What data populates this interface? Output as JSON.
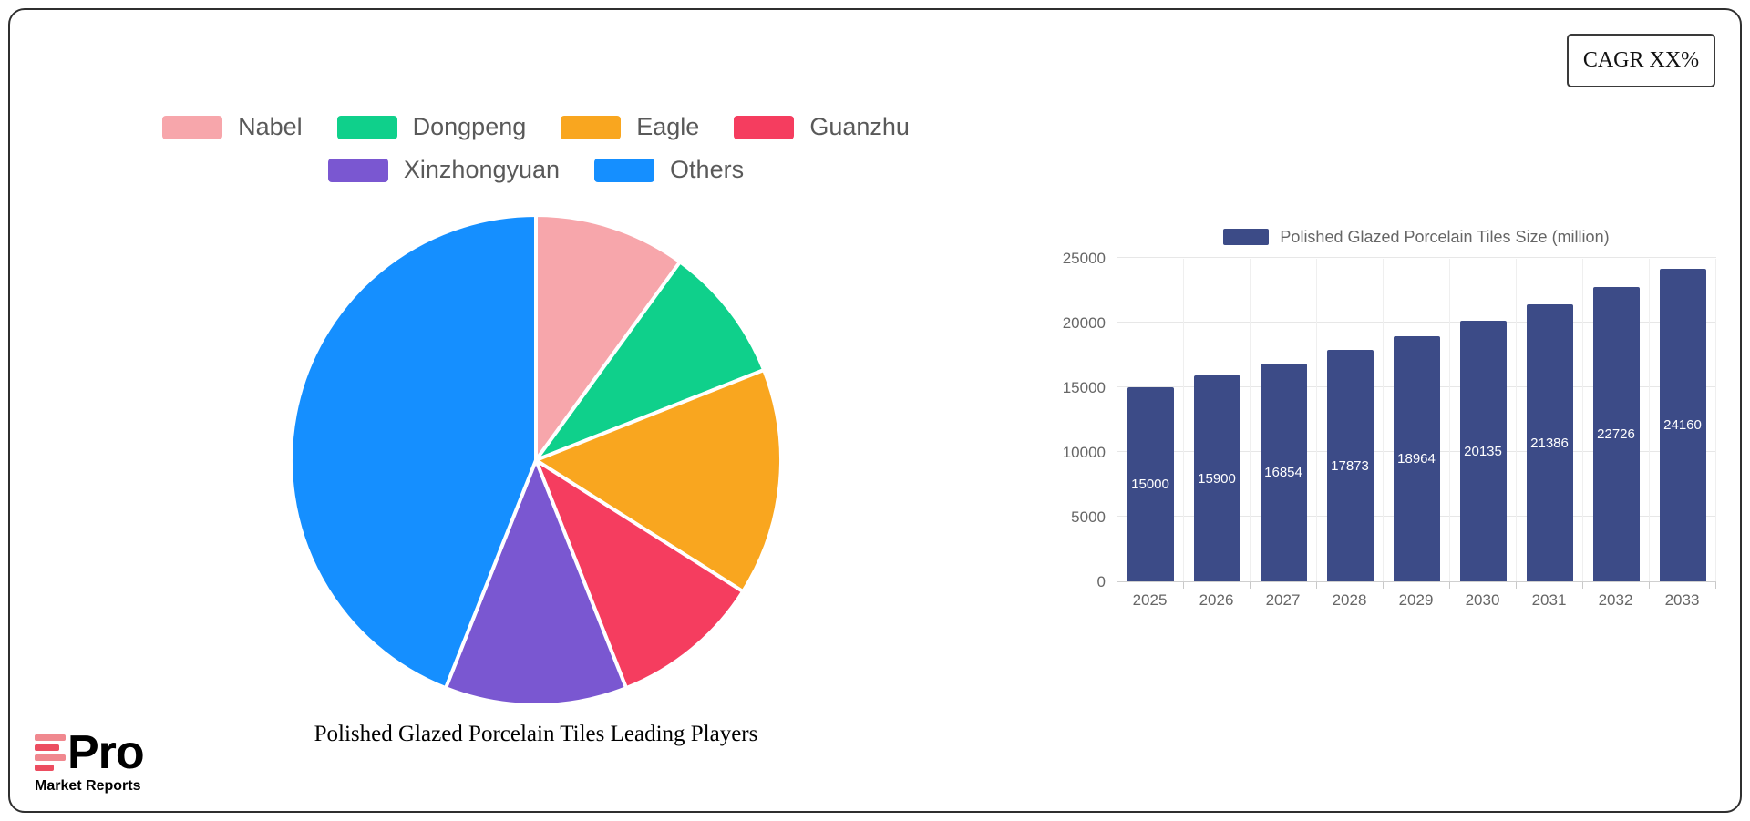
{
  "cagr": {
    "label": "CAGR XX%"
  },
  "logo": {
    "name": "Pro",
    "tagline": "Market Reports"
  },
  "chart_data": [
    {
      "type": "pie",
      "title": "Polished Glazed Porcelain Tiles Leading Players",
      "labels": [
        "Nabel",
        "Dongpeng",
        "Eagle",
        "Guanzhu",
        "Xinzhongyuan",
        "Others"
      ],
      "values": [
        10,
        9,
        15,
        10,
        12,
        44
      ],
      "colors": [
        "#f7a6ab",
        "#0fd08b",
        "#f9a61f",
        "#f53d5f",
        "#7a57d1",
        "#158fff"
      ],
      "slice_border_color": "#ffffff",
      "legend_position": "top",
      "legend_row_sizes": [
        4,
        2
      ],
      "legend_text_color": "#595959"
    },
    {
      "type": "bar",
      "legend_label": "Polished Glazed Porcelain Tiles Size (million)",
      "categories": [
        "2025",
        "2026",
        "2027",
        "2028",
        "2029",
        "2030",
        "2031",
        "2032",
        "2033"
      ],
      "values": [
        15000,
        15900,
        16854,
        17873,
        18964,
        20135,
        21386,
        22726,
        24160
      ],
      "bar_color": "#3c4b87",
      "value_label_color": "#ffffff",
      "ylim": [
        0,
        25000
      ],
      "yticks": [
        0,
        5000,
        10000,
        15000,
        20000,
        25000
      ],
      "grid": true,
      "legend_position": "top",
      "axis_text_color": "#666666"
    }
  ]
}
